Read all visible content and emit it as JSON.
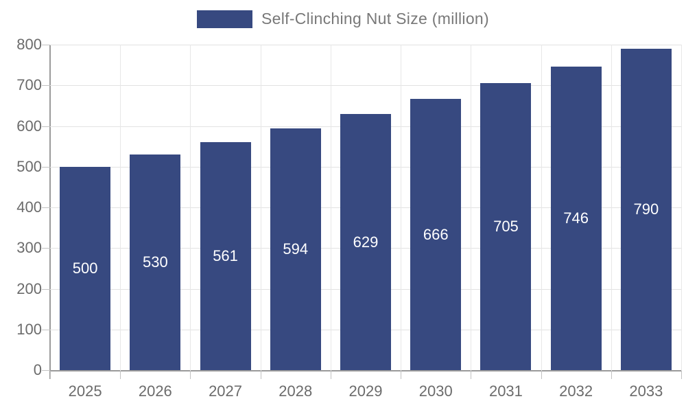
{
  "chart_data": {
    "type": "bar",
    "title": "Self-Clinching Nut Size (million)",
    "legend": [
      "Self-Clinching Nut Size (million)"
    ],
    "legend_position": "top-center",
    "categories": [
      "2025",
      "2026",
      "2027",
      "2028",
      "2029",
      "2030",
      "2031",
      "2032",
      "2033"
    ],
    "values": [
      500,
      530,
      561,
      594,
      629,
      666,
      705,
      746,
      790
    ],
    "value_labels_inside_bars": true,
    "xlabel": "",
    "ylabel": "",
    "ylim": [
      0,
      800
    ],
    "ytick_step": 100,
    "yticks": [
      0,
      100,
      200,
      300,
      400,
      500,
      600,
      700,
      800
    ],
    "grid": true
  },
  "colors": {
    "bar": "#374980",
    "bar_label": "#ffffff",
    "legend_text": "#787878",
    "tick_label": "#6b6b6b",
    "gridline": "#e2e2e2",
    "axis_line": "#9a9a9a"
  }
}
